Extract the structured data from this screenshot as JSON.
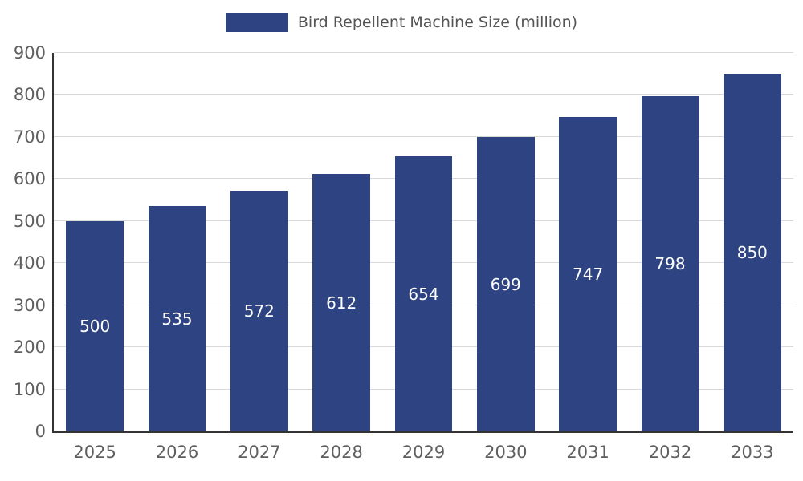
{
  "legend": {
    "label": "Bird Repellent Machine Size (million)"
  },
  "colors": {
    "bar": "#2e4482",
    "value_label": "#ffffff",
    "grid": "#d9d9d9",
    "axis": "#333333",
    "tick_text": "#5f5f5f",
    "legend_text": "#555555"
  },
  "chart_data": {
    "type": "bar",
    "title": "Bird Repellent Machine Size (million)",
    "categories": [
      "2025",
      "2026",
      "2027",
      "2028",
      "2029",
      "2030",
      "2031",
      "2032",
      "2033"
    ],
    "values": [
      500,
      535,
      572,
      612,
      654,
      699,
      747,
      798,
      850
    ],
    "xlabel": "",
    "ylabel": "",
    "ylim": [
      0,
      900
    ],
    "ytick_step": 100,
    "ytick_labels": [
      "0",
      "100",
      "200",
      "300",
      "400",
      "500",
      "600",
      "700",
      "800",
      "900"
    ],
    "grid": true,
    "legend_position": "top",
    "value_labels_shown": true,
    "value_label_position": "inside-middle"
  }
}
